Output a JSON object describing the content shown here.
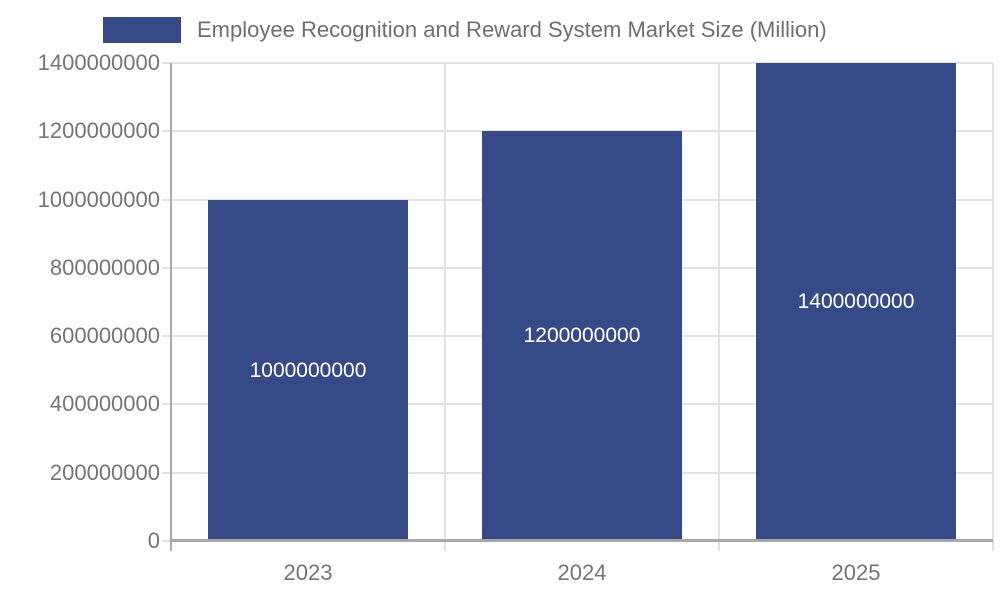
{
  "chart_data": {
    "type": "bar",
    "title": "Employee Recognition and Reward System Market Size (Million)",
    "categories": [
      "2023",
      "2024",
      "2025"
    ],
    "values": [
      1000000000,
      1200000000,
      1400000000
    ],
    "data_labels": [
      "1000000000",
      "1200000000",
      "1400000000"
    ],
    "ylim": [
      0,
      1400000000
    ],
    "yticks": [
      0,
      200000000,
      400000000,
      600000000,
      800000000,
      1000000000,
      1200000000,
      1400000000
    ],
    "ytick_labels": [
      "0",
      "200000000",
      "400000000",
      "600000000",
      "800000000",
      "1000000000",
      "1200000000",
      "1400000000"
    ],
    "xlabel": "",
    "ylabel": "",
    "grid": true,
    "legend_position": "top-left",
    "colors": {
      "bar": "#364a87",
      "grid": "#e2e2e2",
      "axis": "#a8a8a8",
      "tick_text": "#757575",
      "title_text": "#6f6f6f",
      "data_label": "#ffffff"
    }
  }
}
